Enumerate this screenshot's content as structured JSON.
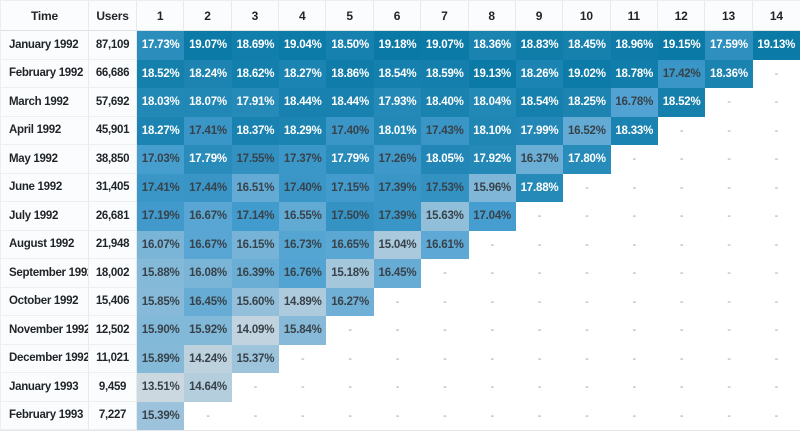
{
  "chart_data": {
    "type": "heatmap",
    "description": "Cohort retention table: monthly user cohorts (Jan 1992 - Feb 1993) with retention percentage for periods 1-14",
    "columns": {
      "time": "Time",
      "users": "Users",
      "periods": [
        "1",
        "2",
        "3",
        "4",
        "5",
        "6",
        "7",
        "8",
        "9",
        "10",
        "11",
        "12",
        "13",
        "14"
      ]
    },
    "missing_marker": "-",
    "value_unit": "%",
    "rows": [
      {
        "time": "January 1992",
        "users": "87,109",
        "values": [
          17.73,
          19.07,
          18.69,
          19.04,
          18.5,
          19.18,
          19.07,
          18.36,
          18.83,
          18.45,
          18.96,
          19.15,
          17.59,
          19.13
        ],
        "display": [
          "17.73%",
          "19.07%",
          "18.69%",
          "19.04%",
          "18.50%",
          "19.18%",
          "19.07%",
          "18.36%",
          "18.83%",
          "18.45%",
          "18.96%",
          "19.15%",
          "17.59%",
          "19.13%"
        ]
      },
      {
        "time": "February 1992",
        "users": "66,686",
        "values": [
          18.52,
          18.24,
          18.62,
          18.27,
          18.86,
          18.54,
          18.59,
          19.13,
          18.26,
          19.02,
          18.78,
          17.42,
          18.36,
          null
        ],
        "display": [
          "18.52%",
          "18.24%",
          "18.62%",
          "18.27%",
          "18.86%",
          "18.54%",
          "18.59%",
          "19.13%",
          "18.26%",
          "19.02%",
          "18.78%",
          "17.42%",
          "18.36%",
          "-"
        ]
      },
      {
        "time": "March 1992",
        "users": "57,692",
        "values": [
          18.03,
          18.07,
          17.91,
          18.44,
          18.44,
          17.93,
          18.4,
          18.04,
          18.54,
          18.25,
          16.78,
          18.52,
          null,
          null
        ],
        "display": [
          "18.03%",
          "18.07%",
          "17.91%",
          "18.44%",
          "18.44%",
          "17.93%",
          "18.40%",
          "18.04%",
          "18.54%",
          "18.25%",
          "16.78%",
          "18.52%",
          "-",
          "-"
        ]
      },
      {
        "time": "April 1992",
        "users": "45,901",
        "values": [
          18.27,
          17.41,
          18.37,
          18.29,
          17.4,
          18.01,
          17.43,
          18.1,
          17.99,
          16.52,
          18.33,
          null,
          null,
          null
        ],
        "display": [
          "18.27%",
          "17.41%",
          "18.37%",
          "18.29%",
          "17.40%",
          "18.01%",
          "17.43%",
          "18.10%",
          "17.99%",
          "16.52%",
          "18.33%",
          "-",
          "-",
          "-"
        ]
      },
      {
        "time": "May 1992",
        "users": "38,850",
        "values": [
          17.03,
          17.79,
          17.55,
          17.37,
          17.79,
          17.26,
          18.05,
          17.92,
          16.37,
          17.8,
          null,
          null,
          null,
          null
        ],
        "display": [
          "17.03%",
          "17.79%",
          "17.55%",
          "17.37%",
          "17.79%",
          "17.26%",
          "18.05%",
          "17.92%",
          "16.37%",
          "17.80%",
          "-",
          "-",
          "-",
          "-"
        ]
      },
      {
        "time": "June 1992",
        "users": "31,405",
        "values": [
          17.41,
          17.44,
          16.51,
          17.4,
          17.15,
          17.39,
          17.53,
          15.96,
          17.88,
          null,
          null,
          null,
          null,
          null
        ],
        "display": [
          "17.41%",
          "17.44%",
          "16.51%",
          "17.40%",
          "17.15%",
          "17.39%",
          "17.53%",
          "15.96%",
          "17.88%",
          "-",
          "-",
          "-",
          "-",
          "-"
        ]
      },
      {
        "time": "July 1992",
        "users": "26,681",
        "values": [
          17.19,
          16.67,
          17.14,
          16.55,
          17.5,
          17.39,
          15.63,
          17.04,
          null,
          null,
          null,
          null,
          null,
          null
        ],
        "display": [
          "17.19%",
          "16.67%",
          "17.14%",
          "16.55%",
          "17.50%",
          "17.39%",
          "15.63%",
          "17.04%",
          "-",
          "-",
          "-",
          "-",
          "-",
          "-"
        ]
      },
      {
        "time": "August 1992",
        "users": "21,948",
        "values": [
          16.07,
          16.67,
          16.15,
          16.73,
          16.65,
          15.04,
          16.61,
          null,
          null,
          null,
          null,
          null,
          null,
          null
        ],
        "display": [
          "16.07%",
          "16.67%",
          "16.15%",
          "16.73%",
          "16.65%",
          "15.04%",
          "16.61%",
          "-",
          "-",
          "-",
          "-",
          "-",
          "-",
          "-"
        ]
      },
      {
        "time": "September 1992",
        "users": "18,002",
        "values": [
          15.88,
          16.08,
          16.39,
          16.76,
          15.18,
          16.45,
          null,
          null,
          null,
          null,
          null,
          null,
          null,
          null
        ],
        "display": [
          "15.88%",
          "16.08%",
          "16.39%",
          "16.76%",
          "15.18%",
          "16.45%",
          "-",
          "-",
          "-",
          "-",
          "-",
          "-",
          "-",
          "-"
        ]
      },
      {
        "time": "October 1992",
        "users": "15,406",
        "values": [
          15.85,
          16.45,
          15.6,
          14.89,
          16.27,
          null,
          null,
          null,
          null,
          null,
          null,
          null,
          null,
          null
        ],
        "display": [
          "15.85%",
          "16.45%",
          "15.60%",
          "14.89%",
          "16.27%",
          "-",
          "-",
          "-",
          "-",
          "-",
          "-",
          "-",
          "-",
          "-"
        ]
      },
      {
        "time": "November 1992",
        "users": "12,502",
        "values": [
          15.9,
          15.92,
          14.09,
          15.84,
          null,
          null,
          null,
          null,
          null,
          null,
          null,
          null,
          null,
          null
        ],
        "display": [
          "15.90%",
          "15.92%",
          "14.09%",
          "15.84%",
          "-",
          "-",
          "-",
          "-",
          "-",
          "-",
          "-",
          "-",
          "-",
          "-"
        ]
      },
      {
        "time": "December 1992",
        "users": "11,021",
        "values": [
          15.89,
          14.24,
          15.37,
          null,
          null,
          null,
          null,
          null,
          null,
          null,
          null,
          null,
          null,
          null
        ],
        "display": [
          "15.89%",
          "14.24%",
          "15.37%",
          "-",
          "-",
          "-",
          "-",
          "-",
          "-",
          "-",
          "-",
          "-",
          "-",
          "-"
        ]
      },
      {
        "time": "January 1993",
        "users": "9,459",
        "values": [
          13.51,
          14.64,
          null,
          null,
          null,
          null,
          null,
          null,
          null,
          null,
          null,
          null,
          null,
          null
        ],
        "display": [
          "13.51%",
          "14.64%",
          "-",
          "-",
          "-",
          "-",
          "-",
          "-",
          "-",
          "-",
          "-",
          "-",
          "-",
          "-"
        ]
      },
      {
        "time": "February 1993",
        "users": "7,227",
        "values": [
          15.39,
          null,
          null,
          null,
          null,
          null,
          null,
          null,
          null,
          null,
          null,
          null,
          null,
          null
        ],
        "display": [
          "15.39%",
          "-",
          "-",
          "-",
          "-",
          "-",
          "-",
          "-",
          "-",
          "-",
          "-",
          "-",
          "-",
          "-"
        ]
      }
    ]
  },
  "theme": {
    "color_scale": {
      "stops": [
        {
          "t": 0.0,
          "color": "#ccd8e0"
        },
        {
          "t": 0.6,
          "color": "#4aa0d2"
        },
        {
          "t": 1.0,
          "color": "#0a79a5"
        }
      ],
      "value_anchors": [
        [
          13.5,
          0.0
        ],
        [
          14.3,
          0.07
        ],
        [
          15.0,
          0.15
        ],
        [
          15.5,
          0.24
        ],
        [
          16.0,
          0.36
        ],
        [
          16.5,
          0.48
        ],
        [
          16.8,
          0.57
        ],
        [
          17.1,
          0.64
        ],
        [
          17.45,
          0.71
        ],
        [
          17.6,
          0.77
        ],
        [
          17.85,
          0.82
        ],
        [
          18.1,
          0.86
        ],
        [
          18.35,
          0.9
        ],
        [
          18.6,
          0.94
        ],
        [
          19.2,
          1.0
        ]
      ],
      "white_text_min": 17.57,
      "white_text_color": "#ffffff",
      "dark_text_color": "#37424a"
    },
    "missing_text_color": "#9aa1a8",
    "header_bg": "#fbfcfd"
  }
}
